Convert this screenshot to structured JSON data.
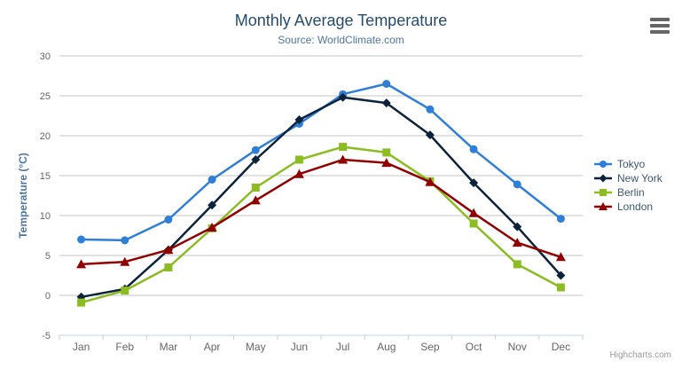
{
  "header": {
    "title": "Monthly Average Temperature",
    "subtitle": "Source: WorldClimate.com"
  },
  "chart_data": {
    "type": "line",
    "title": "Monthly Average Temperature",
    "subtitle": "Source: WorldClimate.com",
    "categories": [
      "Jan",
      "Feb",
      "Mar",
      "Apr",
      "May",
      "Jun",
      "Jul",
      "Aug",
      "Sep",
      "Oct",
      "Nov",
      "Dec"
    ],
    "series": [
      {
        "name": "Tokyo",
        "color": "#2f7ed8",
        "marker": "circle",
        "values": [
          7.0,
          6.9,
          9.5,
          14.5,
          18.2,
          21.5,
          25.2,
          26.5,
          23.3,
          18.3,
          13.9,
          9.6
        ]
      },
      {
        "name": "New York",
        "color": "#0d233a",
        "marker": "diamond",
        "values": [
          -0.2,
          0.8,
          5.7,
          11.3,
          17.0,
          22.0,
          24.8,
          24.1,
          20.1,
          14.1,
          8.6,
          2.5
        ]
      },
      {
        "name": "Berlin",
        "color": "#8bbc21",
        "marker": "square",
        "values": [
          -0.9,
          0.6,
          3.5,
          8.4,
          13.5,
          17.0,
          18.6,
          17.9,
          14.3,
          9.0,
          3.9,
          1.0
        ]
      },
      {
        "name": "London",
        "color": "#910000",
        "marker": "triangle",
        "values": [
          3.9,
          4.2,
          5.7,
          8.5,
          11.9,
          15.2,
          17.0,
          16.6,
          14.2,
          10.3,
          6.6,
          4.8
        ]
      }
    ],
    "xlabel": "",
    "ylabel": "Temperature (°C)",
    "ylim": [
      -5,
      30
    ],
    "ytick_step": 5,
    "yticks": [
      -5,
      0,
      5,
      10,
      15,
      20,
      25,
      30
    ],
    "grid": "horizontal",
    "legend_position": "right"
  },
  "colors": {
    "title": "#274b6d",
    "subtitle": "#4d759e",
    "axis_title": "#4d759e",
    "axis_label": "#666666",
    "gridline": "#c6c6c6",
    "axis_line": "#c0d0e0",
    "legend_text": "#3e576f",
    "credits_text": "#999999",
    "background": "#ffffff"
  },
  "export_menu": {
    "icon": "hamburger-menu-icon"
  },
  "credits": {
    "label": "Highcharts.com"
  }
}
